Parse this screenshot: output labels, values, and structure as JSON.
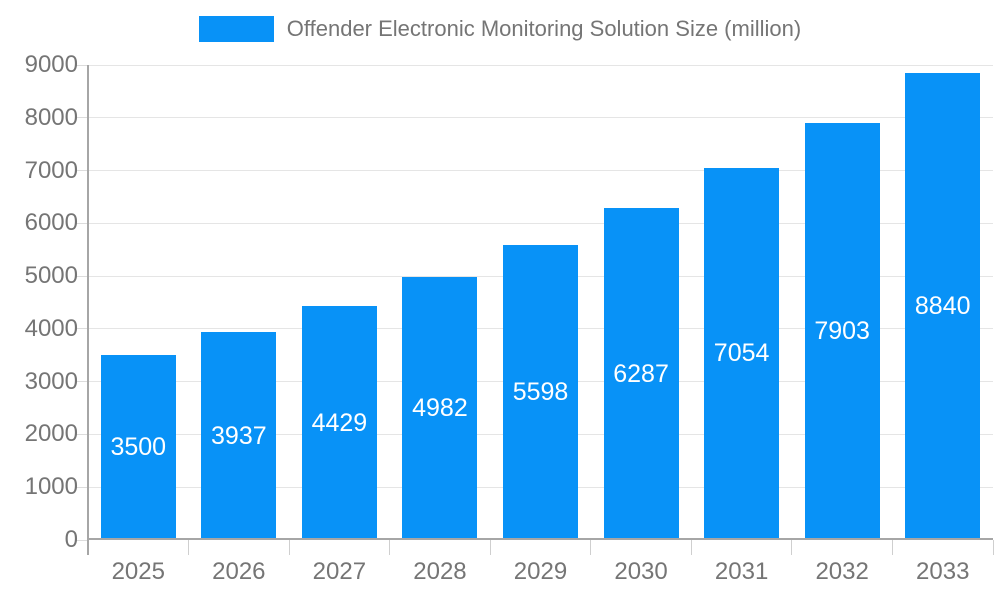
{
  "chart_data": {
    "type": "bar",
    "title": "Offender Electronic Monitoring Solution Size (million)",
    "categories": [
      "2025",
      "2026",
      "2027",
      "2028",
      "2029",
      "2030",
      "2031",
      "2032",
      "2033"
    ],
    "values": [
      3500,
      3937,
      4429,
      4982,
      5598,
      6287,
      7054,
      7903,
      8840
    ],
    "xlabel": "",
    "ylabel": "",
    "ylim": [
      0,
      9000
    ],
    "ytick_step": 1000,
    "yticks": [
      0,
      1000,
      2000,
      3000,
      4000,
      5000,
      6000,
      7000,
      8000,
      9000
    ],
    "grid": "horizontal",
    "legend_position": "top",
    "value_labels": "inside-center",
    "colors": {
      "bar": "#0892f7",
      "bar_label": "#ffffff",
      "axis_text": "#757575",
      "axis_line": "#a6a6a6",
      "gridline": "#e5e5e5",
      "background": "#ffffff"
    }
  }
}
